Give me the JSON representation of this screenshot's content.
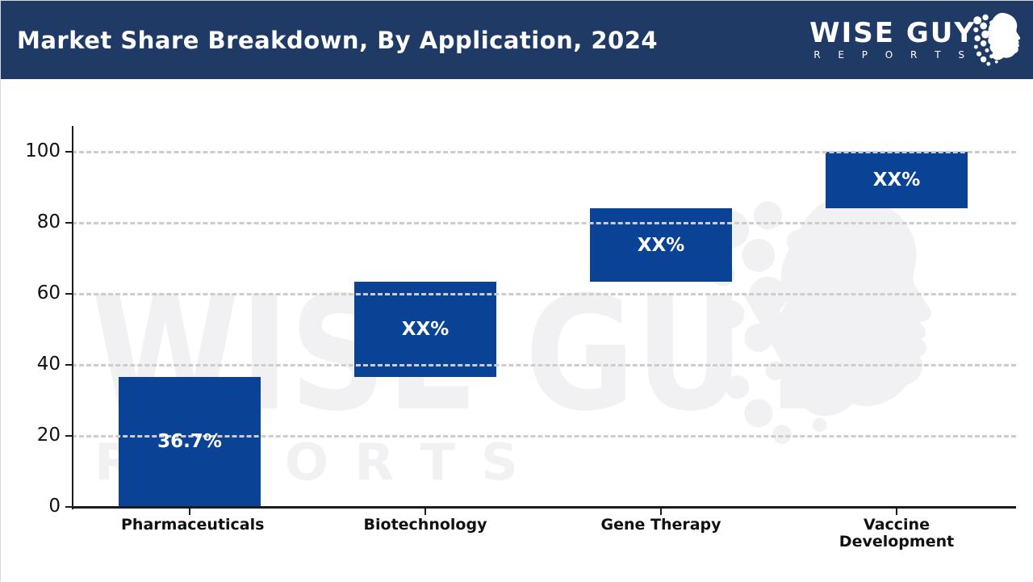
{
  "header": {
    "title": "Market Share Breakdown, By Application, 2024",
    "logo": {
      "line1": "WISE GUY",
      "line2": "R E P O R T S"
    }
  },
  "watermark": {
    "line1": "WISE GUY",
    "line2": "R E P O R T S"
  },
  "chart_data": {
    "type": "bar",
    "subtype": "waterfall",
    "title": "Market Share Breakdown, By Application, 2024",
    "categories": [
      "Pharmaceuticals",
      "Biotechnology",
      "Gene Therapy",
      "Vaccine Development"
    ],
    "segments": [
      {
        "category": "Pharmaceuticals",
        "start": 0,
        "end": 36.7,
        "label": "36.7%"
      },
      {
        "category": "Biotechnology",
        "start": 36.7,
        "end": 63.5,
        "label": "XX%"
      },
      {
        "category": "Gene Therapy",
        "start": 63.5,
        "end": 84.0,
        "label": "XX%"
      },
      {
        "category": "Vaccine Development",
        "start": 84.0,
        "end": 100.0,
        "label": "XX%"
      }
    ],
    "xlabel": "",
    "ylabel": "",
    "ylim": [
      0,
      100
    ],
    "yticks": [
      0,
      20,
      40,
      60,
      80,
      100
    ],
    "grid": "horizontal-dashed",
    "legend": "none"
  },
  "colors": {
    "header_bg": "#203a66",
    "bar_fill": "#0a4296",
    "bar_label": "#ffffff",
    "gridline": "#cdcdcd",
    "axis": "#1b1b1b",
    "watermark": "#f1f1f3",
    "title_text": "#ffffff"
  }
}
